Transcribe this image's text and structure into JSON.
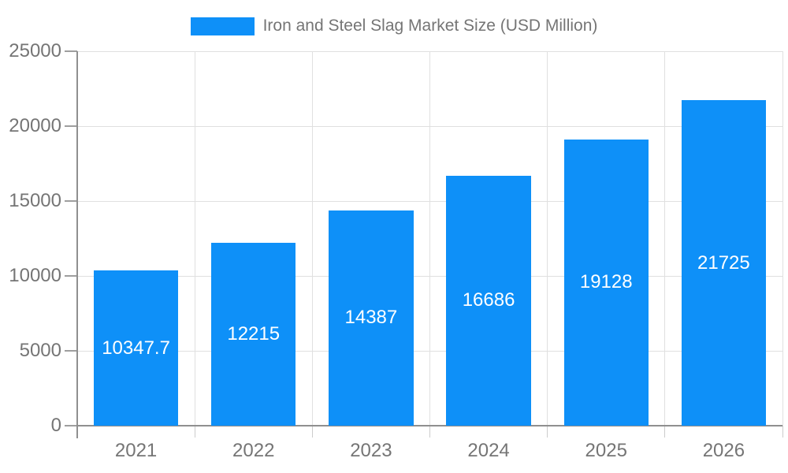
{
  "legend": {
    "label": "Iron and Steel Slag Market Size (USD Million)"
  },
  "chart_data": {
    "type": "bar",
    "title": "Iron and Steel Slag Market Size (USD Million)",
    "categories": [
      "2021",
      "2022",
      "2023",
      "2024",
      "2025",
      "2026"
    ],
    "series": [
      {
        "name": "Iron and Steel Slag Market Size (USD Million)",
        "values": [
          10347.7,
          12215,
          14387,
          16686,
          19128,
          21725
        ]
      }
    ],
    "value_labels": [
      "10347.7",
      "12215",
      "14387",
      "16686",
      "19128",
      "21725"
    ],
    "xlabel": "",
    "ylabel": "",
    "ylim": [
      0,
      25000
    ],
    "yticks": [
      0,
      5000,
      10000,
      15000,
      20000,
      25000
    ],
    "ytick_labels": [
      "0",
      "5000",
      "10000",
      "15000",
      "20000",
      "25000"
    ],
    "grid": true,
    "legend_position": "top-center",
    "colors": {
      "bar": "#0e90f8",
      "value_label": "#ffffff",
      "axis_label": "#757575",
      "legend_text": "#757575",
      "axis_line": "#8f8f8f",
      "tick": "#9e9e9e",
      "boundary_tick": "#cccccc",
      "grid": "#e0e0e0",
      "background": "#ffffff"
    }
  }
}
